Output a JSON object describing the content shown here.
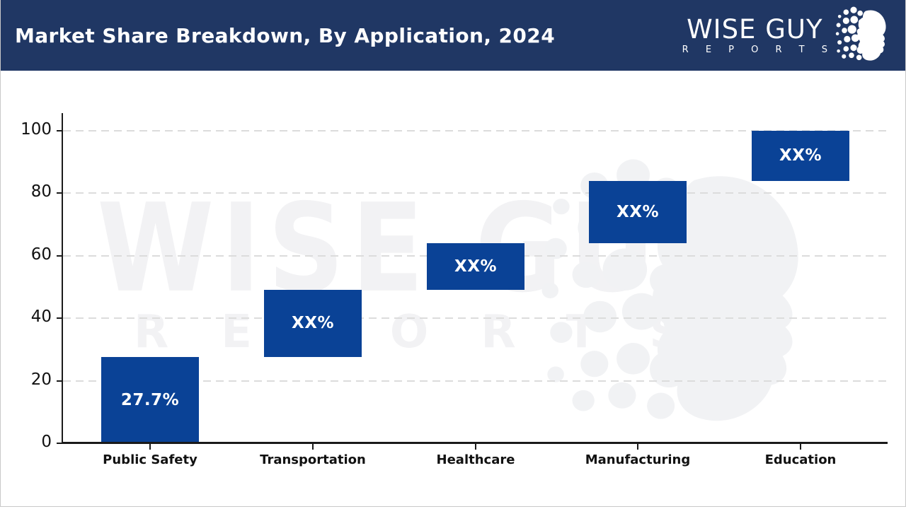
{
  "header": {
    "title": "Market Share Breakdown, By Application, 2024",
    "logo": {
      "line1": "WISE GUY",
      "line2": "R E P O R T S"
    }
  },
  "watermark": {
    "line1": "WISE GUY",
    "line2": "REPORTS"
  },
  "colors": {
    "header_bg": "#203764",
    "bar": "#0a4296",
    "grid": "#dcdcdc",
    "axis": "#1a1a1a",
    "watermark": "#f2f2f4",
    "title_text": "#ffffff"
  },
  "chart_data": {
    "type": "bar",
    "subtype": "waterfall",
    "title": "Market Share Breakdown, By Application, 2024",
    "categories": [
      "Public Safety",
      "Transportation",
      "Healthcare",
      "Manufacturing",
      "Education"
    ],
    "segments": [
      {
        "category": "Public Safety",
        "start": 0,
        "end": 27.7,
        "label": "27.7%"
      },
      {
        "category": "Transportation",
        "start": 27.7,
        "end": 49,
        "label": "XX%"
      },
      {
        "category": "Healthcare",
        "start": 49,
        "end": 64,
        "label": "XX%"
      },
      {
        "category": "Manufacturing",
        "start": 64,
        "end": 84,
        "label": "XX%"
      },
      {
        "category": "Education",
        "start": 84,
        "end": 100,
        "label": "XX%"
      }
    ],
    "yticks": [
      0,
      20,
      40,
      60,
      80,
      100
    ],
    "ylim": [
      0,
      105.7
    ],
    "xlabel": "",
    "ylabel": "",
    "grid": "horizontal-dashed",
    "legend": false,
    "bar_color": "#0a4296"
  }
}
